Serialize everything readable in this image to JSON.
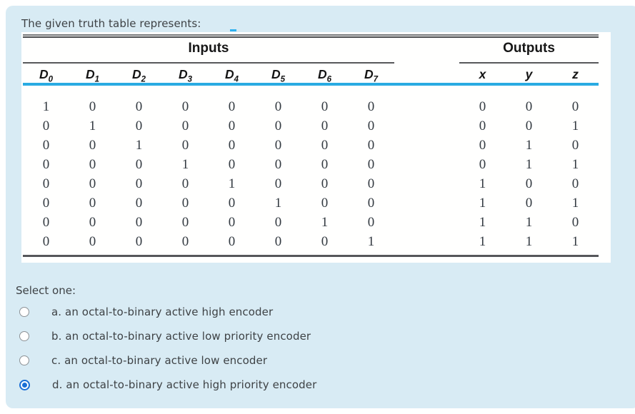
{
  "question": {
    "prompt": "The given truth table represents:"
  },
  "table": {
    "inputs_label": "Inputs",
    "outputs_label": "Outputs",
    "input_columns": [
      {
        "base": "D",
        "sub": "0"
      },
      {
        "base": "D",
        "sub": "1"
      },
      {
        "base": "D",
        "sub": "2"
      },
      {
        "base": "D",
        "sub": "3"
      },
      {
        "base": "D",
        "sub": "4"
      },
      {
        "base": "D",
        "sub": "5"
      },
      {
        "base": "D",
        "sub": "6"
      },
      {
        "base": "D",
        "sub": "7"
      }
    ],
    "output_columns": [
      "x",
      "y",
      "z"
    ],
    "rows": [
      {
        "inputs": [
          "1",
          "0",
          "0",
          "0",
          "0",
          "0",
          "0",
          "0"
        ],
        "outputs": [
          "0",
          "0",
          "0"
        ]
      },
      {
        "inputs": [
          "0",
          "1",
          "0",
          "0",
          "0",
          "0",
          "0",
          "0"
        ],
        "outputs": [
          "0",
          "0",
          "1"
        ]
      },
      {
        "inputs": [
          "0",
          "0",
          "1",
          "0",
          "0",
          "0",
          "0",
          "0"
        ],
        "outputs": [
          "0",
          "1",
          "0"
        ]
      },
      {
        "inputs": [
          "0",
          "0",
          "0",
          "1",
          "0",
          "0",
          "0",
          "0"
        ],
        "outputs": [
          "0",
          "1",
          "1"
        ]
      },
      {
        "inputs": [
          "0",
          "0",
          "0",
          "0",
          "1",
          "0",
          "0",
          "0"
        ],
        "outputs": [
          "1",
          "0",
          "0"
        ]
      },
      {
        "inputs": [
          "0",
          "0",
          "0",
          "0",
          "0",
          "1",
          "0",
          "0"
        ],
        "outputs": [
          "1",
          "0",
          "1"
        ]
      },
      {
        "inputs": [
          "0",
          "0",
          "0",
          "0",
          "0",
          "0",
          "1",
          "0"
        ],
        "outputs": [
          "1",
          "1",
          "0"
        ]
      },
      {
        "inputs": [
          "0",
          "0",
          "0",
          "0",
          "0",
          "0",
          "0",
          "1"
        ],
        "outputs": [
          "1",
          "1",
          "1"
        ]
      }
    ]
  },
  "answers": {
    "label": "Select one:",
    "options": [
      {
        "key": "a",
        "text": "a. an octal-to-binary active high encoder",
        "selected": false
      },
      {
        "key": "b",
        "text": "b. an octal-to-binary active low priority encoder",
        "selected": false
      },
      {
        "key": "c",
        "text": "c. an octal-to-binary active low encoder",
        "selected": false
      },
      {
        "key": "d",
        "text": "d. an octal-to-binary active high priority encoder",
        "selected": true
      }
    ]
  },
  "colors": {
    "panel_background": "#d8ebf4",
    "figure_background": "#fffffe",
    "rule_gray": "#58595b",
    "accent_cyan": "#29abe2",
    "body_text": "#3e4245",
    "table_digit_text": "#333a41",
    "radio_selected_blue": "#1b6fd6"
  }
}
